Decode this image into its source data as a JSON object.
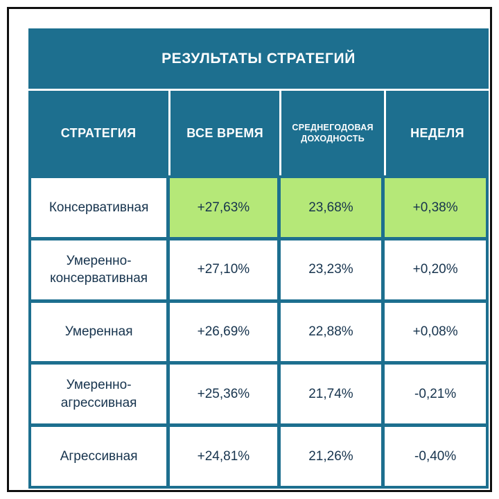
{
  "chart_data": {
    "type": "table",
    "title": "РЕЗУЛЬТАТЫ СТРАТЕГИЙ",
    "columns": [
      "СТРАТЕГИЯ",
      "ВСЕ ВРЕМЯ",
      "СРЕДНЕГОДОВАЯ ДОХОДНОСТЬ",
      "НЕДЕЛЯ"
    ],
    "rows": [
      {
        "strategy": "Консервативная",
        "all_time": "+27,63%",
        "avg_annual": "23,68%",
        "week": "+0,38%",
        "highlighted": true
      },
      {
        "strategy": "Умеренно-консервативная",
        "all_time": "+27,10%",
        "avg_annual": "23,23%",
        "week": "+0,20%",
        "highlighted": false
      },
      {
        "strategy": "Умеренная",
        "all_time": "+26,69%",
        "avg_annual": "22,88%",
        "week": "+0,08%",
        "highlighted": false
      },
      {
        "strategy": "Умеренно-агрессивная",
        "all_time": "+25,36%",
        "avg_annual": "21,74%",
        "week": "-0,21%",
        "highlighted": false
      },
      {
        "strategy": "Агрессивная",
        "all_time": "+24,81%",
        "avg_annual": "21,26%",
        "week": "-0,40%",
        "highlighted": false
      }
    ]
  },
  "colors": {
    "background_teal": "#1D6F8F",
    "highlight_green": "#B5E878",
    "cell_text": "#16334D",
    "header_text": "#FFFFFF"
  }
}
